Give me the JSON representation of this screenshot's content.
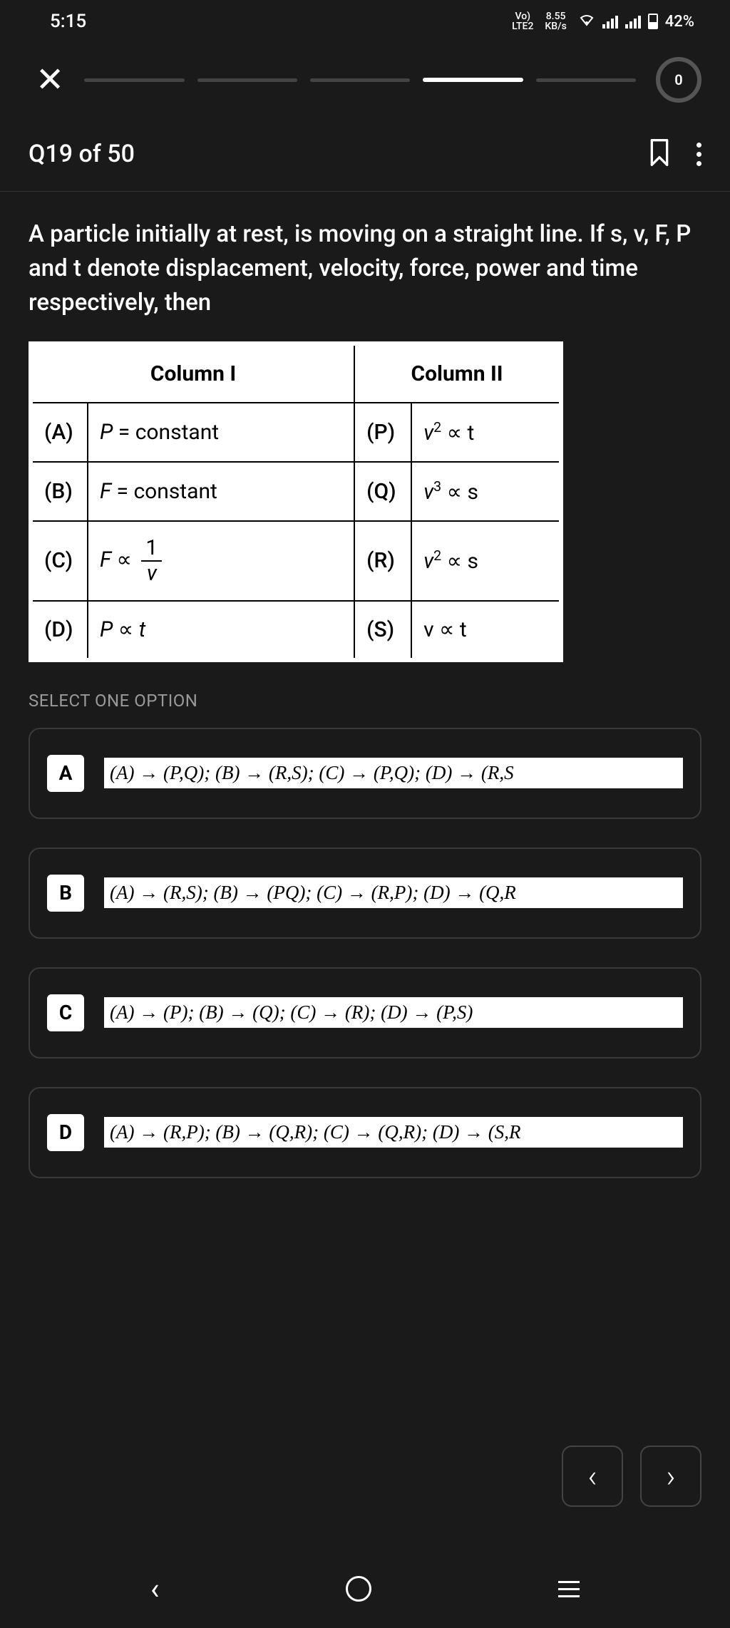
{
  "status": {
    "time": "5:15",
    "net_top": "Vo)",
    "net_bottom": "LTE2",
    "speed_top": "8.55",
    "speed_bottom": "KB/s",
    "battery": "42%"
  },
  "top": {
    "badge": "0"
  },
  "question": {
    "counter": "Q19 of 50",
    "text": "A particle initially at rest, is moving on a straight line. If s, v, F, P and t denote displacement, velocity, force, power and time respectively, then"
  },
  "table": {
    "header_col1": "Column I",
    "header_col2": "Column II",
    "rows": [
      {
        "l1": "(A)",
        "c1_html": "<i>P</i> = constant",
        "l2": "(P)",
        "c2_html": "<i>v</i><sup>2</sup> ∝ t"
      },
      {
        "l1": "(B)",
        "c1_html": "<i>F</i> = constant",
        "l2": "(Q)",
        "c2_html": "<i>v</i><sup>3</sup> ∝ s"
      },
      {
        "l1": "(C)",
        "c1_html": "<i>F</i> ∝ <span class='frac'><span class='num'>1</span><span class='den'>v</span></span>",
        "l2": "(R)",
        "c2_html": "<i>v</i><sup>2</sup> ∝ s"
      },
      {
        "l1": "(D)",
        "c1_html": "<i>P</i> ∝ <i>t</i>",
        "l2": "(S)",
        "c2_html": "v ∝ t"
      }
    ]
  },
  "select_label": "SELECT ONE OPTION",
  "options": [
    {
      "letter": "A",
      "text": "(A) → (P,Q); (B) → (R,S); (C) → (P,Q); (D) → (R,S"
    },
    {
      "letter": "B",
      "text": "(A) → (R,S); (B) → (PQ); (C) → (R,P); (D) → (Q,R"
    },
    {
      "letter": "C",
      "text": "(A) → (P); (B) → (Q); (C) → (R); (D) → (P,S)"
    },
    {
      "letter": "D",
      "text": "(A) → (R,P); (B) → (Q,R); (C) → (Q,R); (D) → (S,R"
    }
  ],
  "nav": {
    "prev": "‹",
    "next": "›"
  }
}
